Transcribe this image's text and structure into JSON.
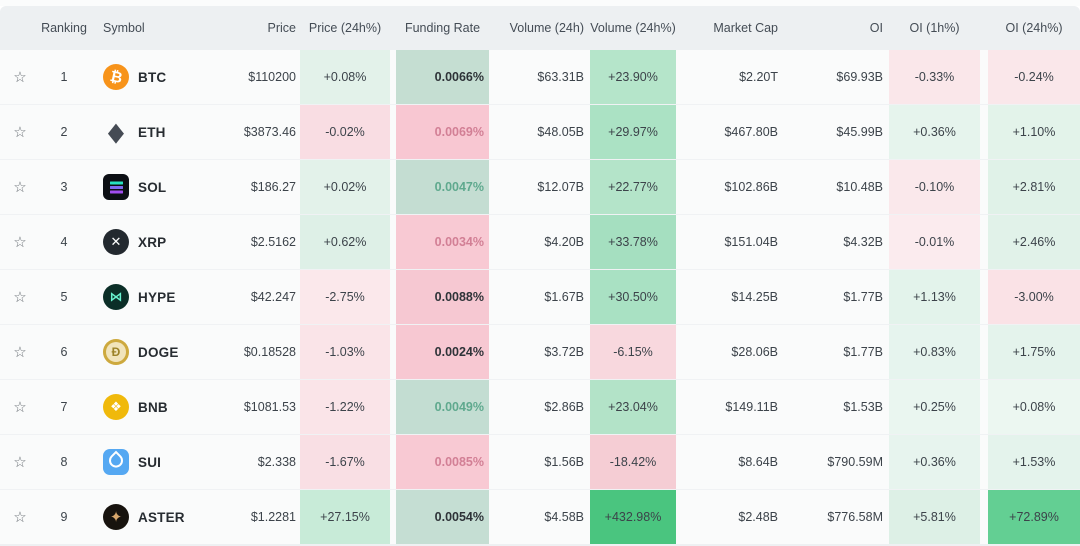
{
  "header": {
    "ranking": "Ranking",
    "symbol": "Symbol",
    "price": "Price",
    "price_24h": "Price (24h%)",
    "funding_rate": "Funding Rate",
    "volume_24h": "Volume (24h)",
    "volume_24h_pct": "Volume (24h%)",
    "market_cap": "Market Cap",
    "oi": "OI",
    "oi_1h": "OI (1h%)",
    "oi_24h": "OI (24h%)"
  },
  "colors": {
    "header_bg": "#edf0f2",
    "row_bg": "#fafbfb",
    "funding_text_dark": "#2e3338",
    "funding_text_rose": "#d27f95",
    "funding_text_teal": "#5fa98e"
  },
  "icons": {
    "favorite": "star-outline"
  },
  "star_glyph": "☆",
  "rows": [
    {
      "rank": "1",
      "symbol": "BTC",
      "icon": {
        "kind": "btc",
        "glyph": "₿"
      },
      "price": "$110200",
      "price_24h": {
        "text": "+0.08%",
        "bg": "#e3f2ea"
      },
      "funding": {
        "text": "0.0066%",
        "bg": "#c5ded2",
        "fg": "#2e3338"
      },
      "volume": "$63.31B",
      "volume_24h": {
        "text": "+23.90%",
        "bg": "#b5e5ca"
      },
      "market_cap": "$2.20T",
      "oi": "$69.93B",
      "oi_1h": {
        "text": "-0.33%",
        "bg": "#fae7ea"
      },
      "oi_24h": {
        "text": "-0.24%",
        "bg": "#fae7ea"
      }
    },
    {
      "rank": "2",
      "symbol": "ETH",
      "icon": {
        "kind": "eth",
        "glyph": "◆"
      },
      "price": "$3873.46",
      "price_24h": {
        "text": "-0.02%",
        "bg": "#f9dde3"
      },
      "funding": {
        "text": "0.0069%",
        "bg": "#f8c7d2",
        "fg": "#d27f95"
      },
      "volume": "$48.05B",
      "volume_24h": {
        "text": "+29.97%",
        "bg": "#abe2c4"
      },
      "market_cap": "$467.80B",
      "oi": "$45.99B",
      "oi_1h": {
        "text": "+0.36%",
        "bg": "#e6f4ed"
      },
      "oi_24h": {
        "text": "+1.10%",
        "bg": "#e3f3ea"
      }
    },
    {
      "rank": "3",
      "symbol": "SOL",
      "icon": {
        "kind": "sol",
        "glyph": ""
      },
      "price": "$186.27",
      "price_24h": {
        "text": "+0.02%",
        "bg": "#e3f2ea"
      },
      "funding": {
        "text": "0.0047%",
        "bg": "#c4ddd2",
        "fg": "#5fa98e"
      },
      "volume": "$12.07B",
      "volume_24h": {
        "text": "+22.77%",
        "bg": "#b4e4c9"
      },
      "market_cap": "$102.86B",
      "oi": "$10.48B",
      "oi_1h": {
        "text": "-0.10%",
        "bg": "#fae8eb"
      },
      "oi_24h": {
        "text": "+2.81%",
        "bg": "#e0f2e8"
      }
    },
    {
      "rank": "4",
      "symbol": "XRP",
      "icon": {
        "kind": "xrp",
        "glyph": "✕"
      },
      "price": "$2.5162",
      "price_24h": {
        "text": "+0.62%",
        "bg": "#def0e7"
      },
      "funding": {
        "text": "0.0034%",
        "bg": "#f8c9d3",
        "fg": "#d27f95"
      },
      "volume": "$4.20B",
      "volume_24h": {
        "text": "+33.78%",
        "bg": "#a5dfc0"
      },
      "market_cap": "$151.04B",
      "oi": "$4.32B",
      "oi_1h": {
        "text": "-0.01%",
        "bg": "#fbebee"
      },
      "oi_24h": {
        "text": "+2.46%",
        "bg": "#e1f2e9"
      }
    },
    {
      "rank": "5",
      "symbol": "HYPE",
      "icon": {
        "kind": "hype",
        "glyph": "⋈"
      },
      "price": "$42.247",
      "price_24h": {
        "text": "-2.75%",
        "bg": "#fbe8eb"
      },
      "funding": {
        "text": "0.0088%",
        "bg": "#f6c8d2",
        "fg": "#2e3338"
      },
      "volume": "$1.67B",
      "volume_24h": {
        "text": "+30.50%",
        "bg": "#a9e1c3"
      },
      "market_cap": "$14.25B",
      "oi": "$1.77B",
      "oi_1h": {
        "text": "+1.13%",
        "bg": "#e3f3eb"
      },
      "oi_24h": {
        "text": "-3.00%",
        "bg": "#fae2e6"
      }
    },
    {
      "rank": "6",
      "symbol": "DOGE",
      "icon": {
        "kind": "doge",
        "glyph": "Ð"
      },
      "price": "$0.18528",
      "price_24h": {
        "text": "-1.03%",
        "bg": "#fae4e8"
      },
      "funding": {
        "text": "0.0024%",
        "bg": "#f7c8d2",
        "fg": "#2e3338"
      },
      "volume": "$3.72B",
      "volume_24h": {
        "text": "-6.15%",
        "bg": "#f8d8de"
      },
      "market_cap": "$28.06B",
      "oi": "$1.77B",
      "oi_1h": {
        "text": "+0.83%",
        "bg": "#e6f4ee"
      },
      "oi_24h": {
        "text": "+1.75%",
        "bg": "#e4f3ec"
      }
    },
    {
      "rank": "7",
      "symbol": "BNB",
      "icon": {
        "kind": "bnb",
        "glyph": "❖"
      },
      "price": "$1081.53",
      "price_24h": {
        "text": "-1.22%",
        "bg": "#fae4e8"
      },
      "funding": {
        "text": "0.0049%",
        "bg": "#c3ddd2",
        "fg": "#5fa98e"
      },
      "volume": "$2.86B",
      "volume_24h": {
        "text": "+23.04%",
        "bg": "#b3e3c8"
      },
      "market_cap": "$149.11B",
      "oi": "$1.53B",
      "oi_1h": {
        "text": "+0.25%",
        "bg": "#eaf6f0"
      },
      "oi_24h": {
        "text": "+0.08%",
        "bg": "#ecf7f1"
      }
    },
    {
      "rank": "8",
      "symbol": "SUI",
      "icon": {
        "kind": "sui",
        "glyph": ""
      },
      "price": "$2.338",
      "price_24h": {
        "text": "-1.67%",
        "bg": "#f9dfe4"
      },
      "funding": {
        "text": "0.0085%",
        "bg": "#f8c9d3",
        "fg": "#d27f95"
      },
      "volume": "$1.56B",
      "volume_24h": {
        "text": "-18.42%",
        "bg": "#f5cdd4"
      },
      "market_cap": "$8.64B",
      "oi": "$790.59M",
      "oi_1h": {
        "text": "+0.36%",
        "bg": "#e7f4ee"
      },
      "oi_24h": {
        "text": "+1.53%",
        "bg": "#e4f3ec"
      }
    },
    {
      "rank": "9",
      "symbol": "ASTER",
      "icon": {
        "kind": "aster",
        "glyph": "✦"
      },
      "price": "$1.2281",
      "price_24h": {
        "text": "+27.15%",
        "bg": "#c8ebd8"
      },
      "funding": {
        "text": "0.0054%",
        "bg": "#c5ded3",
        "fg": "#2e3338"
      },
      "volume": "$4.58B",
      "volume_24h": {
        "text": "+432.98%",
        "bg": "#4ac57f"
      },
      "market_cap": "$2.48B",
      "oi": "$776.58M",
      "oi_1h": {
        "text": "+5.81%",
        "bg": "#ddf0e6"
      },
      "oi_24h": {
        "text": "+72.89%",
        "bg": "#63cf93"
      }
    }
  ]
}
